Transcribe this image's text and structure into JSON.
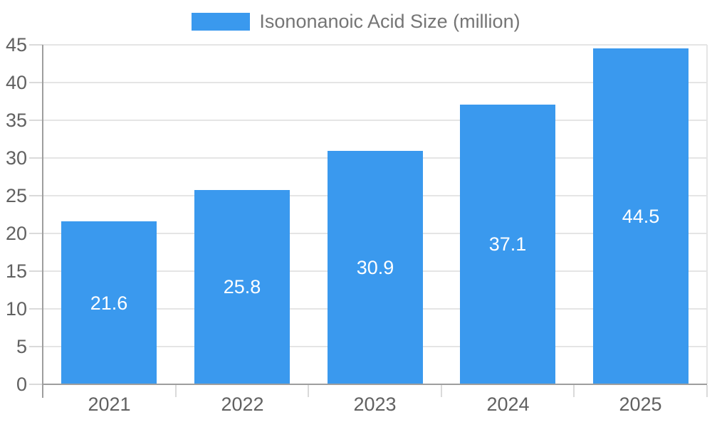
{
  "colors": {
    "accent": "#3A99EE",
    "grid": "#E5E5E5",
    "tick": "#DADADA",
    "axis": "#9E9E9E",
    "axis_text": "#616161",
    "legend_text": "#757575",
    "value_text": "#FFFFFF",
    "background": "#FFFFFF"
  },
  "chart_data": {
    "type": "bar",
    "title": "",
    "legend": "Isononanoic Acid Size (million)",
    "legend_position": "top",
    "categories": [
      "2021",
      "2022",
      "2023",
      "2024",
      "2025"
    ],
    "series": [
      {
        "name": "Isononanoic Acid Size (million)",
        "values": [
          21.6,
          25.8,
          30.9,
          37.1,
          44.5
        ]
      }
    ],
    "value_labels": [
      "21.6",
      "25.8",
      "30.9",
      "37.1",
      "44.5"
    ],
    "xlabel": "",
    "ylabel": "",
    "ylim": [
      0,
      45
    ],
    "yticks": [
      0,
      5,
      10,
      15,
      20,
      25,
      30,
      35,
      40,
      45
    ],
    "grid": true
  }
}
